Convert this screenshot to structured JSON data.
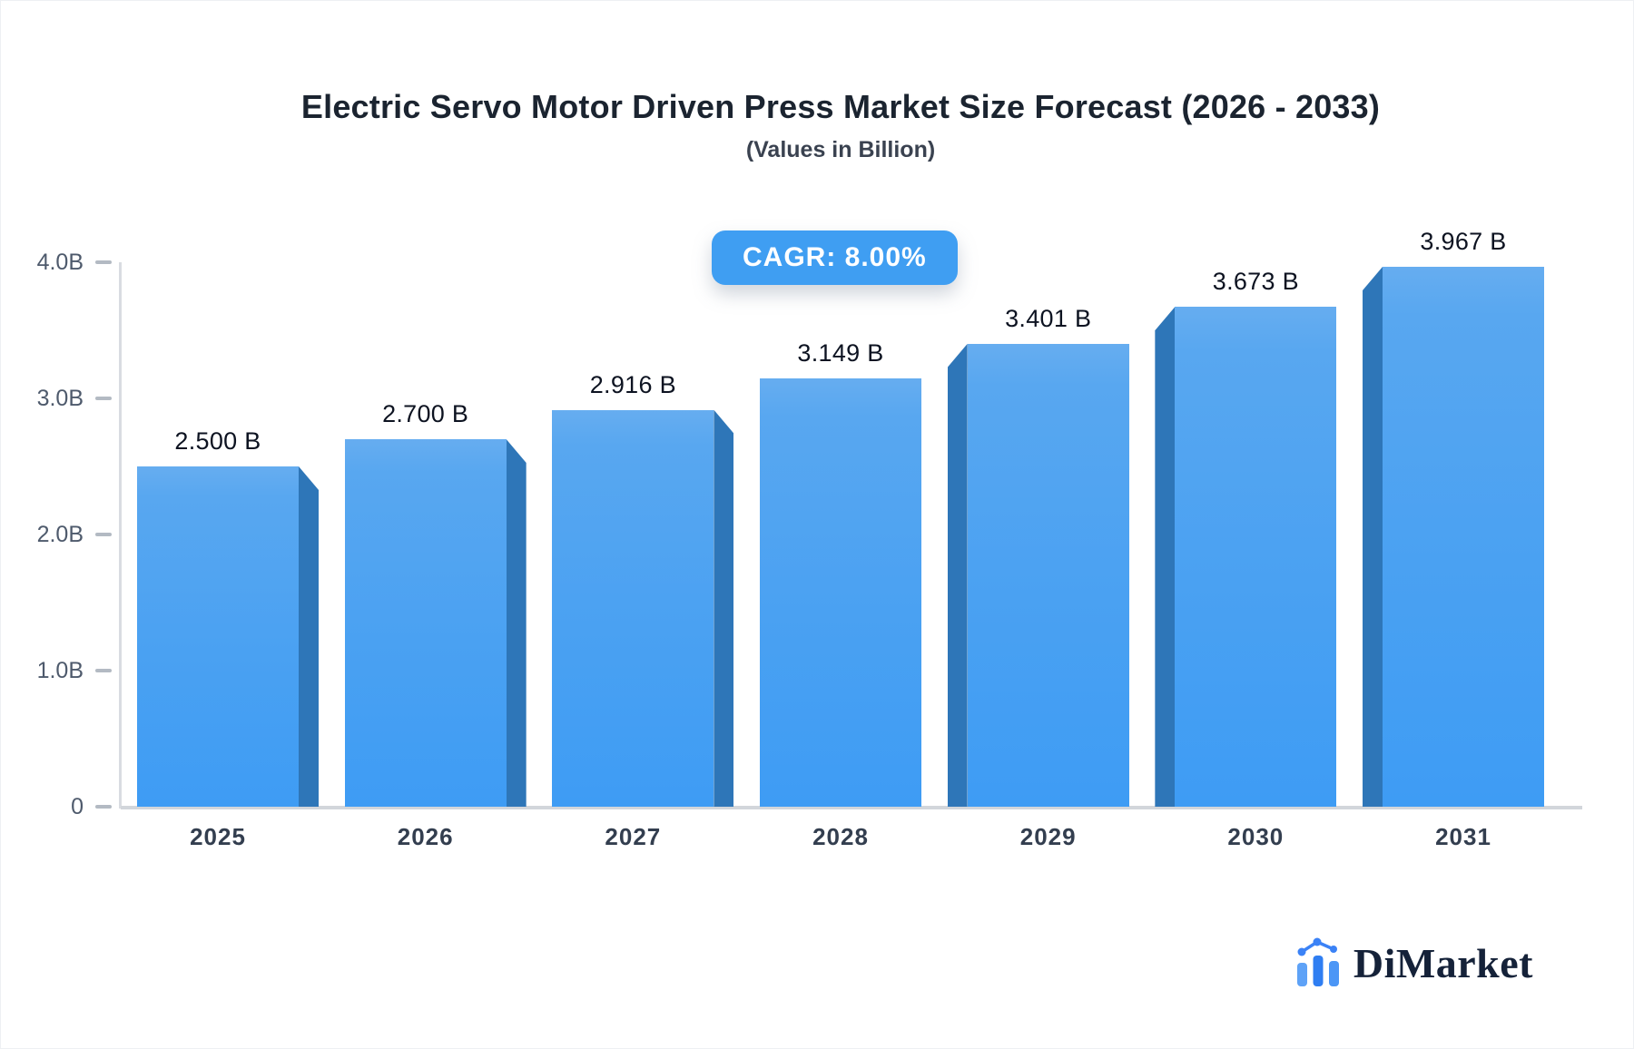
{
  "header": {
    "title": "Electric Servo Motor Driven Press Market Size Forecast (2026 - 2033)",
    "subtitle": "(Values in Billion)",
    "cagr_label": "CAGR: 8.00%"
  },
  "chart_data": {
    "type": "bar",
    "title": "Electric Servo Motor Driven Press Market Size Forecast (2026 - 2033)",
    "subtitle": "(Values in Billion)",
    "annotation": "CAGR: 8.00%",
    "categories": [
      "2025",
      "2026",
      "2027",
      "2028",
      "2029",
      "2030",
      "2031"
    ],
    "values": [
      2.5,
      2.7,
      2.916,
      3.149,
      3.401,
      3.673,
      3.967
    ],
    "value_labels": [
      "2.500 B",
      "2.700 B",
      "2.916 B",
      "3.149 B",
      "3.401 B",
      "3.673 B",
      "3.967 B"
    ],
    "xlabel": "",
    "ylabel": "",
    "ylim": [
      0,
      4.0
    ],
    "yticks": [
      {
        "value": 0,
        "label": "0"
      },
      {
        "value": 1,
        "label": "1.0B"
      },
      {
        "value": 2,
        "label": "2.0B"
      },
      {
        "value": 3,
        "label": "3.0B"
      },
      {
        "value": 4,
        "label": "4.0B"
      }
    ],
    "grid": false,
    "legend_position": "none",
    "colors": {
      "bar_face_top": "#66ADF0",
      "bar_face_bottom": "#3E9CF4",
      "bar_side": "#2E76B8",
      "badge_background": "#3F9EF2",
      "badge_text": "#FFFFFF",
      "axis_line": "#D2D6DB",
      "tick_text": "#4E5A6C",
      "value_text": "#0D1321"
    }
  },
  "branding": {
    "logo_text": "DiMarket"
  }
}
